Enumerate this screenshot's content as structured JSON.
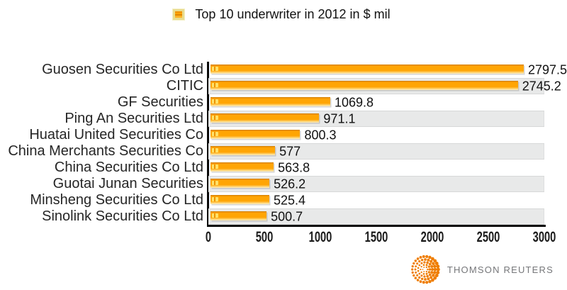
{
  "legend": {
    "marker_color": "#FFA504",
    "label": "Top 10 underwriter in 2012 in $ mil"
  },
  "chart_data": {
    "type": "bar",
    "orientation": "horizontal",
    "title": "Top 10 underwriter in 2012 in $ mil",
    "categories": [
      "Guosen Securities Co Ltd",
      "CITIC",
      "GF Securities",
      "Ping An Securities Ltd",
      "Huatai United Securities Co",
      "China Merchants Securities Co",
      "China Securities Co Ltd",
      "Guotai Junan Securities",
      "Minsheng Securities Co Ltd",
      "Sinolink Securities Co Ltd"
    ],
    "values": [
      2797.5,
      2745.2,
      1069.8,
      971.1,
      800.3,
      577,
      563.8,
      526.2,
      525.4,
      500.7
    ],
    "value_labels": [
      "2797.5",
      "2745.2",
      "1069.8",
      "971.1",
      "800.3",
      "577",
      "563.8",
      "526.2",
      "525.4",
      "500.7"
    ],
    "xlabel": "",
    "ylabel": "",
    "xlim": [
      0,
      3000
    ],
    "x_ticks": [
      "0",
      "500",
      "1000",
      "1500",
      "2000",
      "2500",
      "3000"
    ],
    "bar_color": "#FFA504",
    "row_stripe_color": "#E8E9E9",
    "axis_color": "#0A0A0A",
    "grid": false,
    "legend_position": "top-center"
  },
  "footer": {
    "brand": "THOMSON REUTERS",
    "logo_color": "#EF7D00",
    "brand_text_color": "#76777A"
  }
}
